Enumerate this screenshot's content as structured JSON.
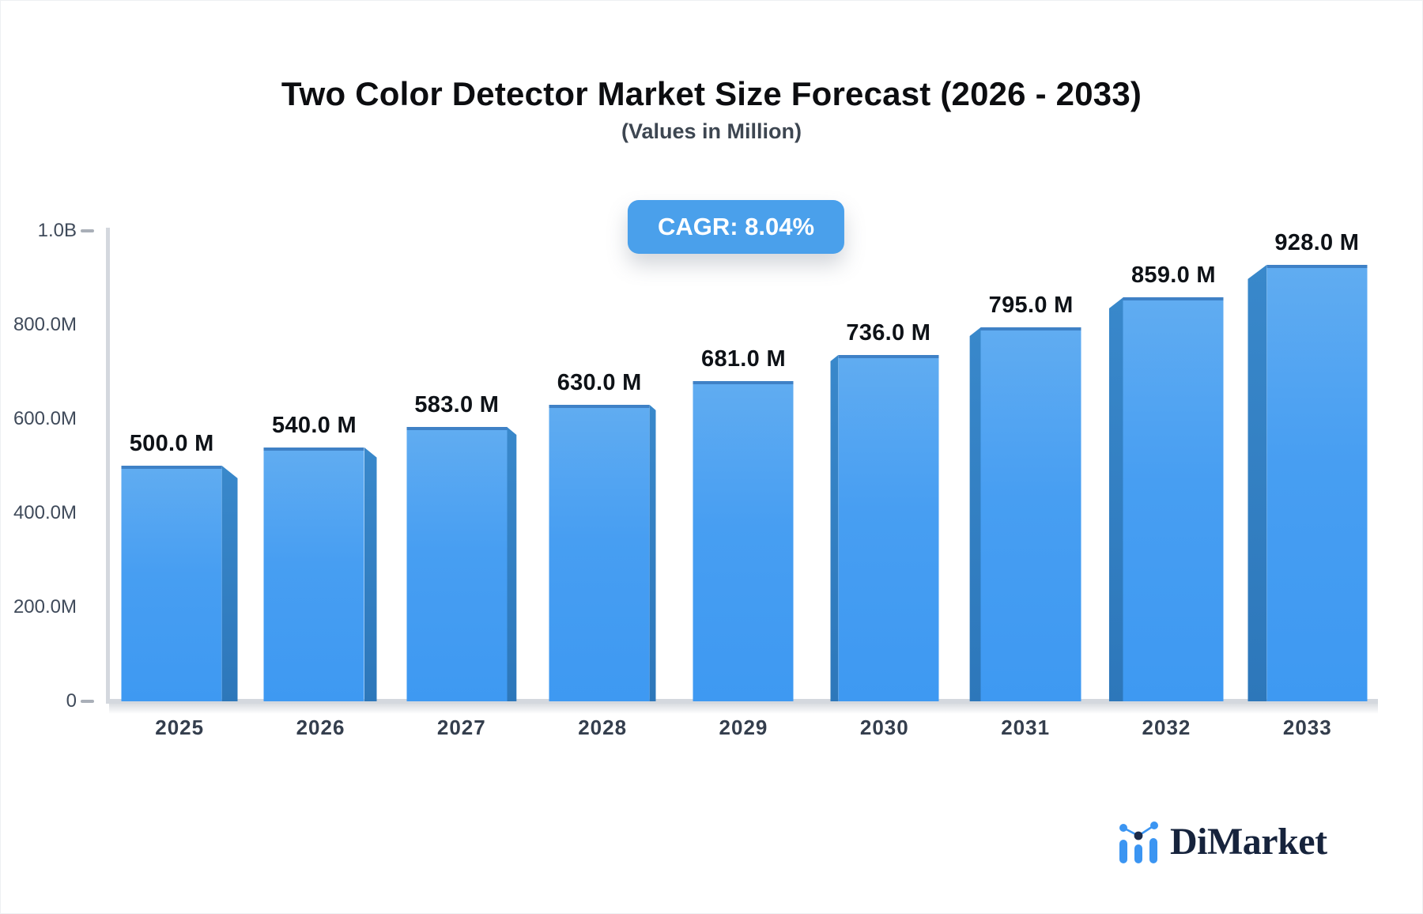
{
  "header": {
    "title": "Two Color Detector Market Size Forecast (2026 - 2033)",
    "subtitle": "(Values in Million)"
  },
  "badge": {
    "label": "CAGR: 8.04%"
  },
  "chart_data": {
    "type": "bar",
    "title": "Two Color Detector Market Size Forecast (2026 - 2033)",
    "subtitle": "(Values in Million)",
    "cagr_label": "CAGR: 8.04%",
    "categories": [
      "2025",
      "2026",
      "2027",
      "2028",
      "2029",
      "2030",
      "2031",
      "2032",
      "2033"
    ],
    "values": [
      500,
      540,
      583,
      630,
      681,
      736,
      795,
      859,
      928
    ],
    "value_labels": [
      "500.0 M",
      "540.0 M",
      "583.0 M",
      "630.0 M",
      "681.0 M",
      "736.0 M",
      "795.0 M",
      "859.0 M",
      "928.0 M"
    ],
    "unit": "Million",
    "xlabel": "",
    "ylabel": "",
    "ylim": [
      0,
      1000
    ],
    "y_ticks": [
      {
        "label": "1.0B",
        "value": 1000,
        "dash": true
      },
      {
        "label": "800.0M",
        "value": 800,
        "dash": false
      },
      {
        "label": "600.0M",
        "value": 600,
        "dash": false
      },
      {
        "label": "400.0M",
        "value": 400,
        "dash": false
      },
      {
        "label": "200.0M",
        "value": 200,
        "dash": false
      },
      {
        "label": "0",
        "value": 0,
        "dash": true
      }
    ],
    "grid": false,
    "legend": "none",
    "bar_3d": {
      "directions": [
        "right",
        "right",
        "right",
        "right",
        "none",
        "left",
        "left",
        "left",
        "left"
      ],
      "side_widths": [
        20,
        16,
        12,
        8,
        0,
        10,
        14,
        18,
        24
      ],
      "slant_drops": [
        16,
        13,
        10,
        7,
        0,
        8,
        11,
        14,
        18
      ]
    }
  },
  "colors": {
    "bar_face_top": "#60acf1",
    "bar_face_bottom": "#3e99f2",
    "bar_top_edge": "#3f81c6",
    "bar_side": "#2d77ba",
    "axis": "#d4d8de",
    "badge_bg": "#4aa0eb",
    "badge_text": "#ffffff",
    "title_text": "#0c0d10",
    "label_text": "#3f4a5a",
    "logo_navy": "#16233c",
    "logo_blue": "#3b95f2"
  },
  "logo": {
    "text": "DiMarket",
    "icon": "bar-chart-icon"
  }
}
